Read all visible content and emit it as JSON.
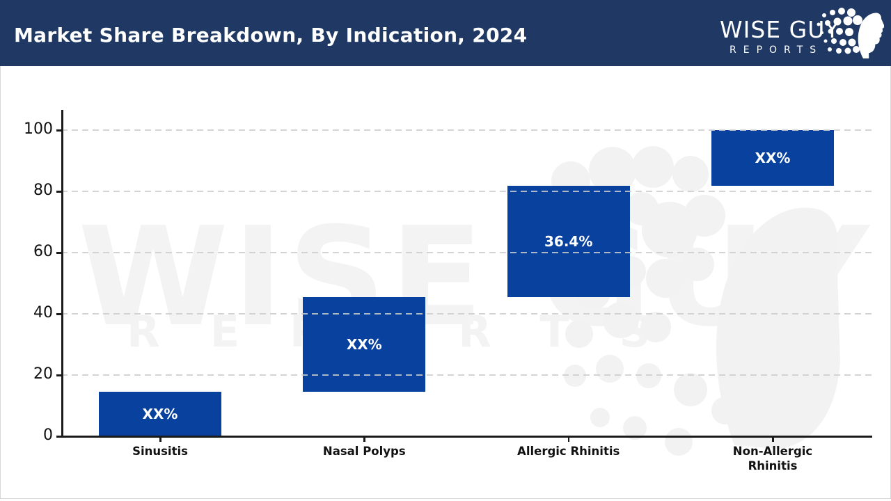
{
  "header": {
    "title": "Market Share Breakdown, By Indication, 2024",
    "background": "#1f3864",
    "logo": {
      "name": "WISE GUY",
      "tagline": "REPORTS"
    }
  },
  "watermark": {
    "name": "WISE GUY",
    "tagline": "REPORTS"
  },
  "chart_data": {
    "type": "bar",
    "subtype": "floating-waterfall",
    "title": "Market Share Breakdown, By Indication, 2024",
    "categories": [
      "Sinusitis",
      "Nasal Polyps",
      "Allergic Rhinitis",
      "Non-Allergic Rhinitis"
    ],
    "segments": [
      {
        "category": "Sinusitis",
        "start": 0,
        "end": 14.5,
        "label": "XX%"
      },
      {
        "category": "Nasal Polyps",
        "start": 14.5,
        "end": 45.5,
        "label": "XX%"
      },
      {
        "category": "Allergic Rhinitis",
        "start": 45.5,
        "end": 81.9,
        "label": "36.4%"
      },
      {
        "category": "Non-Allergic Rhinitis",
        "start": 81.9,
        "end": 100,
        "label": "XX%"
      }
    ],
    "xlabel": "",
    "ylabel": "",
    "yticks": [
      0,
      20,
      40,
      60,
      80,
      100
    ],
    "ylim": [
      0,
      107
    ],
    "grid": "horizontal-dashed",
    "legend": "none",
    "bar_color": "#09419e",
    "bar_label_color": "#ffffff"
  }
}
